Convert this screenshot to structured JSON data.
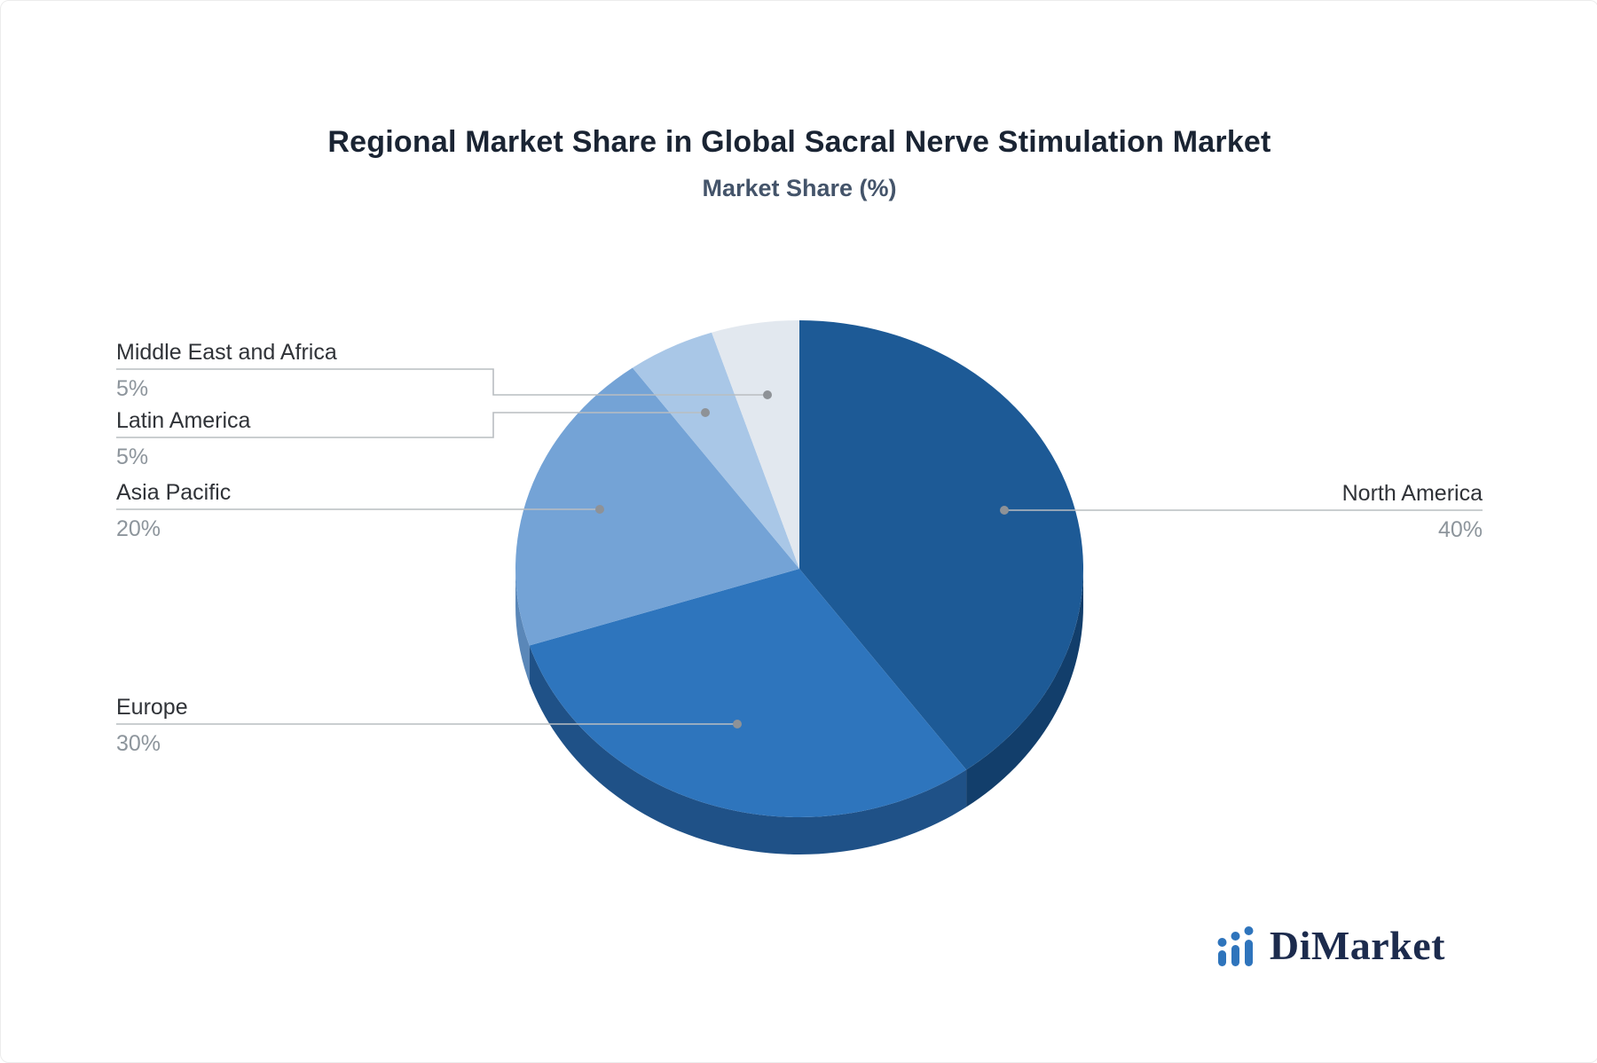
{
  "header": {
    "title": "Regional Market Share in Global Sacral Nerve Stimulation Market",
    "subtitle": "Market Share (%)"
  },
  "chart_data": {
    "type": "pie",
    "title": "Regional Market Share in Global Sacral Nerve Stimulation Market",
    "subtitle": "Market Share (%)",
    "labels": [
      "North America",
      "Europe",
      "Asia Pacific",
      "Latin America",
      "Middle East and Africa"
    ],
    "values": [
      40,
      30,
      20,
      5,
      5
    ],
    "value_labels": [
      "40%",
      "30%",
      "20%",
      "5%",
      "5%"
    ],
    "colors": [
      "#1d5a96",
      "#2e75bd",
      "#74a3d6",
      "#a9c7e7",
      "#e2e8ef"
    ],
    "side_colors": [
      "#123e6b",
      "#1f5187",
      "#5a87b8",
      "#8fabcc",
      "#c3ccd6"
    ],
    "start_angle_deg": -90,
    "direction": "clockwise",
    "legend_position": "none",
    "label_style": "callout",
    "effect": "3d-pie"
  },
  "branding": {
    "logo_text": "DiMarket",
    "logo_icon": "bar-chart-icon",
    "logo_text_color": "#1c2b4d",
    "logo_icon_color": "#2e74bc"
  }
}
